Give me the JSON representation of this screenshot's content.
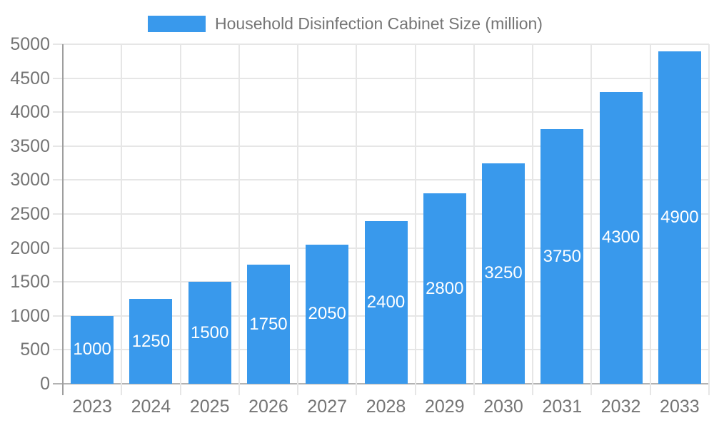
{
  "chart_data": {
    "type": "bar",
    "title": "Household Disinfection Cabinet Size (million)",
    "categories": [
      "2023",
      "2024",
      "2025",
      "2026",
      "2027",
      "2028",
      "2029",
      "2030",
      "2031",
      "2032",
      "2033"
    ],
    "values": [
      1000,
      1250,
      1500,
      1750,
      2050,
      2400,
      2800,
      3250,
      3750,
      4300,
      4900
    ],
    "xlabel": "",
    "ylabel": "",
    "ylim": [
      0,
      5000
    ],
    "ytick_step": 500,
    "grid": true,
    "legend_position": "top",
    "bar_color": "#3999EC",
    "bar_label_color": "#ffffff",
    "axis_text_color": "#757575",
    "gridline_color": "#e6e6e6",
    "axis_line_color": "#9e9e9e",
    "baseline_color": "#b3b3b3",
    "background_color": "#ffffff"
  }
}
